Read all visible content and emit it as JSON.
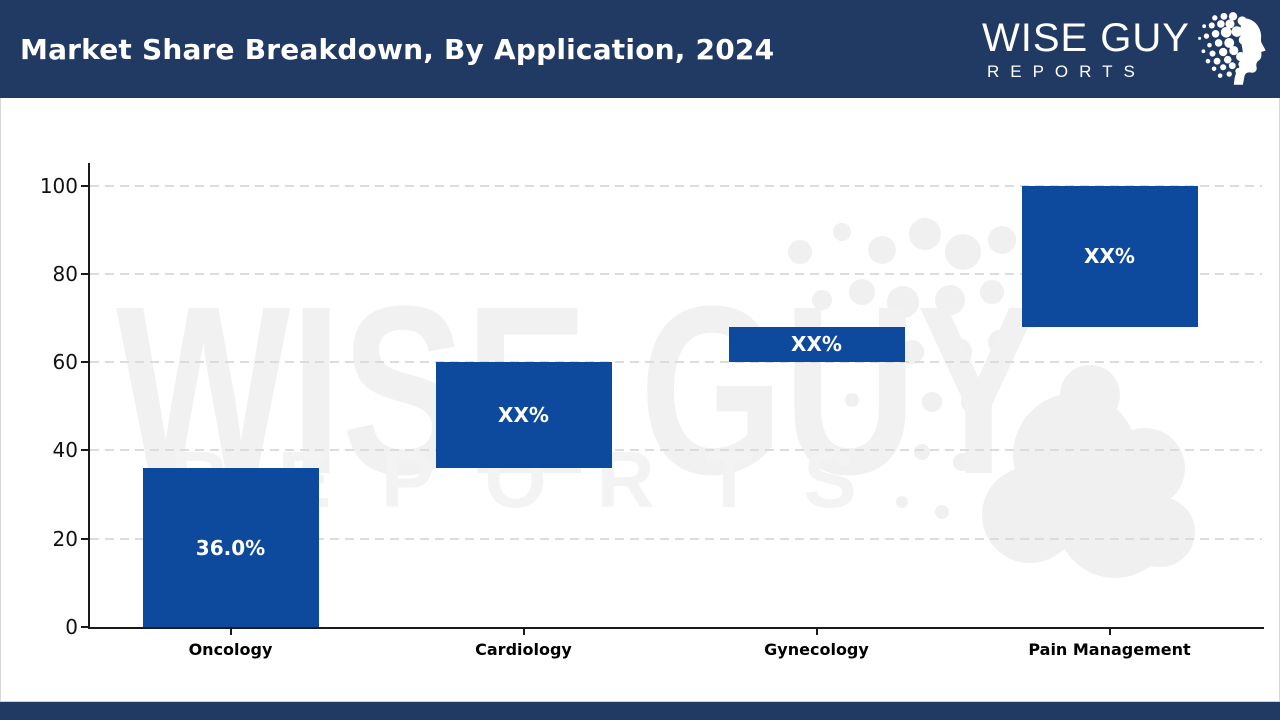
{
  "header": {
    "title": "Market Share Breakdown, By Application, 2024",
    "logo": {
      "wordmark": "WISE GUY",
      "subtext": "REPORTS"
    }
  },
  "watermark": {
    "wordmark": "WISE GUY",
    "subtext": "REPORTS"
  },
  "chart_data": {
    "type": "bar",
    "variant": "floating-segment-waterfall",
    "title": "Market Share Breakdown, By Application, 2024",
    "categories": [
      "Oncology",
      "Cardiology",
      "Gynecology",
      "Pain Management"
    ],
    "segments": [
      {
        "category": "Oncology",
        "start": 0,
        "end": 36,
        "label": "36.0%"
      },
      {
        "category": "Cardiology",
        "start": 36,
        "end": 60,
        "label": "XX%"
      },
      {
        "category": "Gynecology",
        "start": 60,
        "end": 68,
        "label": "XX%"
      },
      {
        "category": "Pain Management",
        "start": 68,
        "end": 100,
        "label": "XX%"
      }
    ],
    "xlabel": "",
    "ylabel": "",
    "ylim": [
      0,
      100
    ],
    "yticks": [
      0,
      20,
      40,
      60,
      80,
      100
    ],
    "grid": "horizontal-dashed",
    "legend": "none",
    "bar_color": "#0d4a9e",
    "bar_label_color": "#ffffff"
  },
  "colors": {
    "header_bg": "#213a64",
    "footer_bg": "#213a64",
    "bar": "#0d4a9e",
    "gridline": "#dcdcdc",
    "axis": "#1a1a1a",
    "watermark_text": "#f1f1f1",
    "watermark_dots": "#f0f0f0",
    "bar_label": "#ffffff",
    "frame_border": "#d8d8d8"
  }
}
